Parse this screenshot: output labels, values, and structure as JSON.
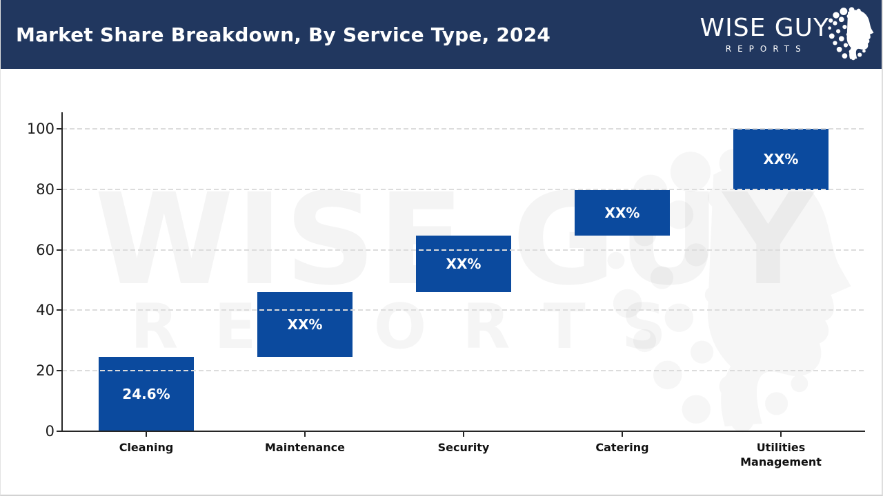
{
  "header": {
    "title": "Market Share Breakdown, By Service Type, 2024",
    "logo": {
      "wordmark": "WISE GUY",
      "subtext": "REPORTS"
    }
  },
  "watermark": {
    "line1": "WISE GUY",
    "line2": "REPORTS"
  },
  "colors": {
    "header_bg": "#21375f",
    "bar_fill": "#0b4a9e",
    "bar_label": "#ffffff",
    "gridline": "#dcdcdc",
    "axis": "#262626",
    "tick_label": "#1a1a1a"
  },
  "chart_data": {
    "type": "bar",
    "subtype": "floating-waterfall",
    "title": "Market Share Breakdown, By Service Type, 2024",
    "xlabel": "",
    "ylabel": "",
    "ylim": [
      0,
      100
    ],
    "yticks": [
      0,
      20,
      40,
      60,
      80,
      100
    ],
    "grid": "horizontal-dashed",
    "legend": "none",
    "categories": [
      "Cleaning",
      "Maintenance",
      "Security",
      "Catering",
      "Utilities Management"
    ],
    "segments": [
      {
        "category": "Cleaning",
        "start": 0,
        "end": 24.6,
        "label": "24.6%"
      },
      {
        "category": "Maintenance",
        "start": 24.6,
        "end": 46.1,
        "label": "XX%"
      },
      {
        "category": "Security",
        "start": 46.1,
        "end": 64.7,
        "label": "XX%"
      },
      {
        "category": "Catering",
        "start": 64.7,
        "end": 79.8,
        "label": "XX%"
      },
      {
        "category": "Utilities Management",
        "start": 79.8,
        "end": 100,
        "label": "XX%"
      }
    ]
  }
}
